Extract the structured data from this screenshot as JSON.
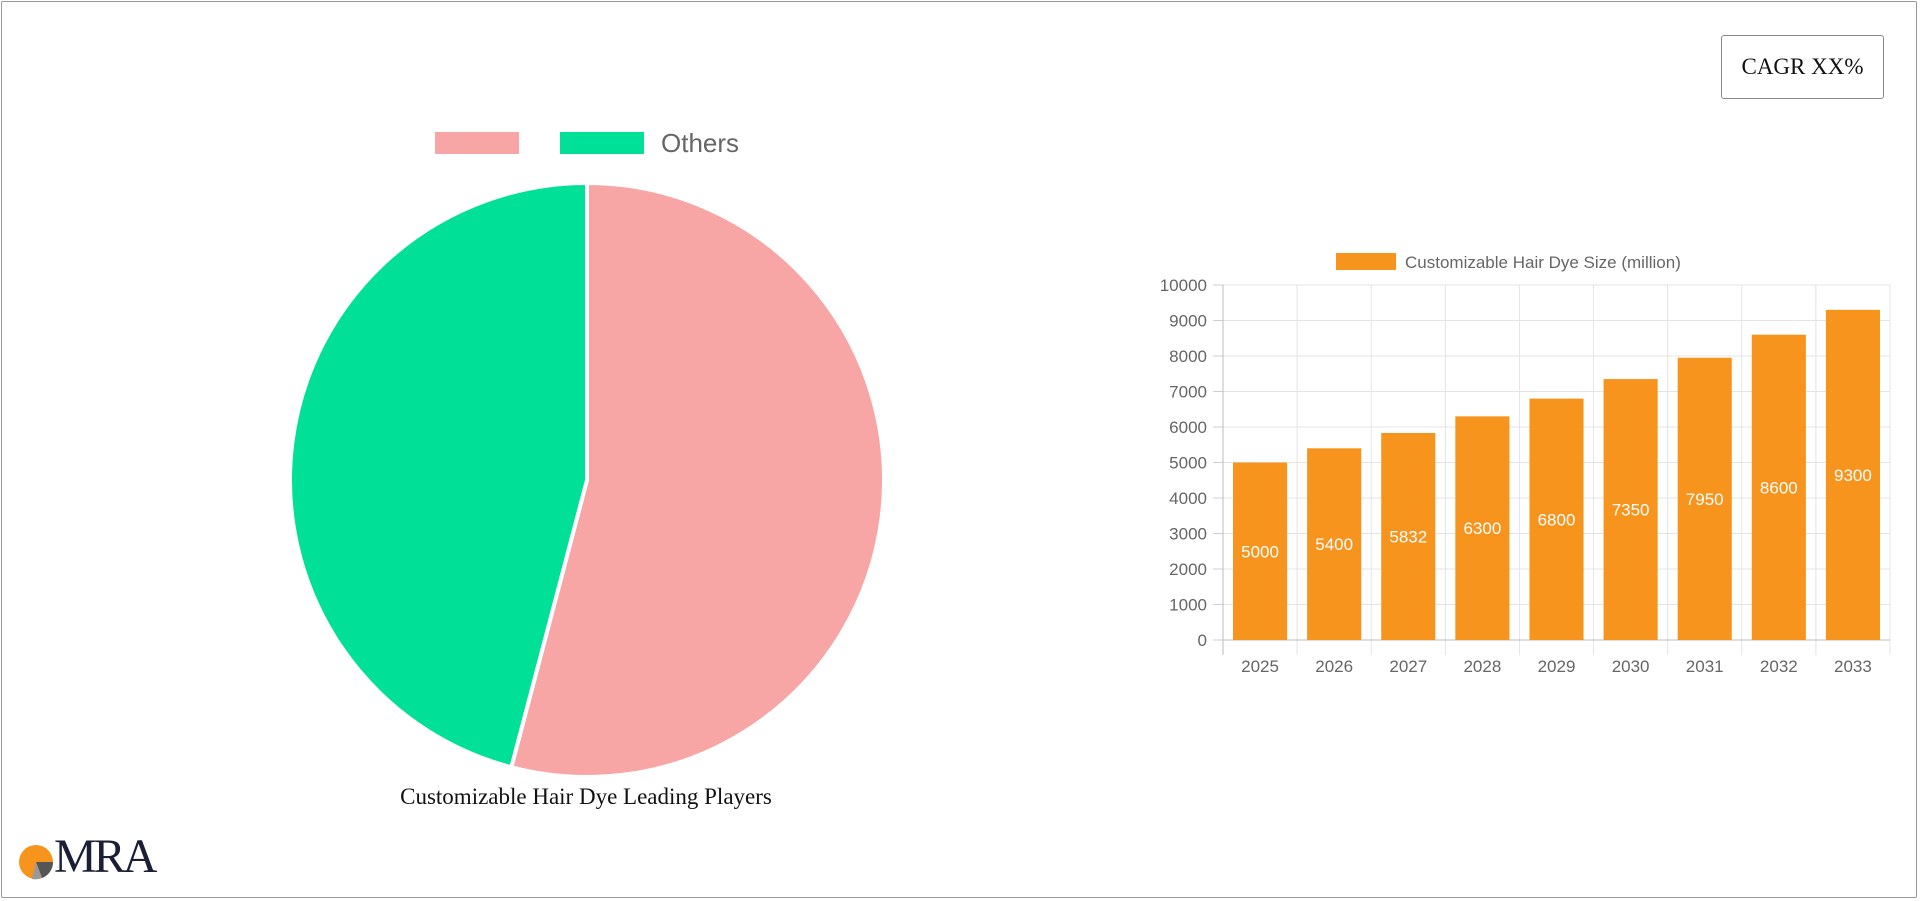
{
  "cagr_label": "CAGR XX%",
  "colors": {
    "pie_leading": "#f8a5a5",
    "pie_others": "#00e096",
    "bar": "#f7941d",
    "bar_label": "#ffffff",
    "axis_text": "#666666",
    "grid": "#e4e4e4",
    "logo_orange": "#f7941d",
    "logo_dark": "#1a1f36"
  },
  "logo": {
    "text": "MRA"
  },
  "chart_data": [
    {
      "type": "pie",
      "caption": "Customizable Hair Dye Leading Players",
      "legend": [
        "",
        "Others"
      ],
      "legend_position": "top",
      "slices": [
        {
          "label": "",
          "value": 54.1
        },
        {
          "label": "Others",
          "value": 45.9
        }
      ]
    },
    {
      "type": "bar",
      "legend": [
        "Customizable Hair Dye Size (million)"
      ],
      "legend_position": "top",
      "categories": [
        "2025",
        "2026",
        "2027",
        "2028",
        "2029",
        "2030",
        "2031",
        "2032",
        "2033"
      ],
      "series": [
        {
          "name": "Customizable Hair Dye Size (million)",
          "values": [
            5000,
            5400,
            5832,
            6300,
            6800,
            7350,
            7950,
            8600,
            9300
          ]
        }
      ],
      "ylim": [
        0,
        10000
      ],
      "yticks": [
        0,
        1000,
        2000,
        3000,
        4000,
        5000,
        6000,
        7000,
        8000,
        9000,
        10000
      ],
      "grid": true,
      "data_labels": true
    }
  ]
}
